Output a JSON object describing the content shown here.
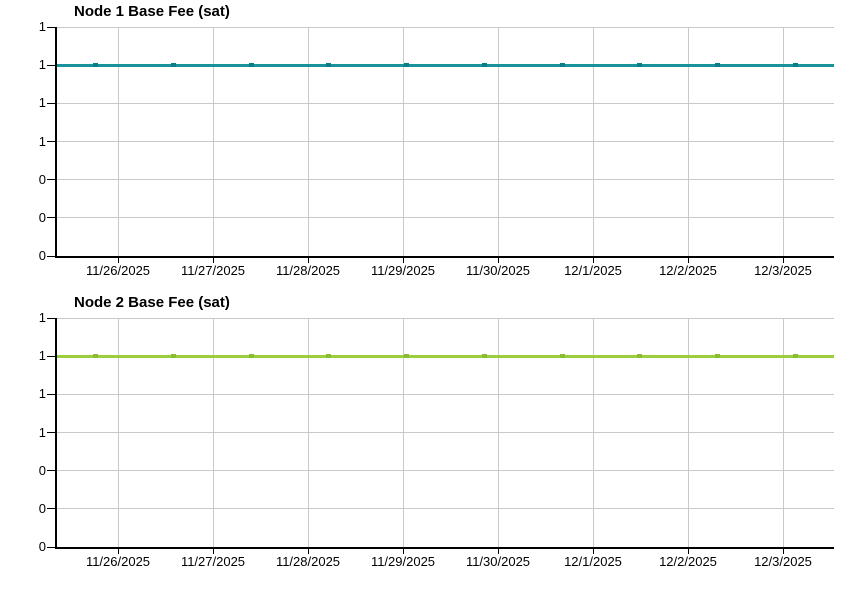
{
  "chart_data": [
    {
      "type": "line",
      "title": "Node 1 Base Fee (sat)",
      "x_tick_labels": [
        "11/26/2025",
        "11/27/2025",
        "11/28/2025",
        "11/29/2025",
        "11/30/2025",
        "12/1/2025",
        "12/2/2025",
        "12/3/2025"
      ],
      "y_ticks": [
        1.2,
        1.0,
        0.8,
        0.6,
        0.4,
        0.2,
        0.0
      ],
      "y_tick_labels": [
        "1",
        "1",
        "1",
        "1",
        "0",
        "0",
        "0"
      ],
      "ylim": [
        0,
        1.2
      ],
      "xlabel": "",
      "ylabel": "",
      "grid": true,
      "legend": "none",
      "line_color": "#18929b",
      "marker_color": "#0d7d85",
      "grid_color": "#c9c9c9",
      "axis_color": "#000000",
      "series": [
        {
          "name": "Node 1 Base Fee (sat)",
          "values": [
            1,
            1,
            1,
            1,
            1,
            1,
            1,
            1,
            1,
            1
          ]
        }
      ]
    },
    {
      "type": "line",
      "title": "Node 2 Base Fee (sat)",
      "x_tick_labels": [
        "11/26/2025",
        "11/27/2025",
        "11/28/2025",
        "11/29/2025",
        "11/30/2025",
        "12/1/2025",
        "12/2/2025",
        "12/3/2025"
      ],
      "y_ticks": [
        1.2,
        1.0,
        0.8,
        0.6,
        0.4,
        0.2,
        0.0
      ],
      "y_tick_labels": [
        "1",
        "1",
        "1",
        "1",
        "0",
        "0",
        "0"
      ],
      "ylim": [
        0,
        1.2
      ],
      "xlabel": "",
      "ylabel": "",
      "grid": true,
      "legend": "none",
      "line_color": "#9ccd3d",
      "marker_color": "#8abc32",
      "grid_color": "#c9c9c9",
      "axis_color": "#000000",
      "series": [
        {
          "name": "Node 2 Base Fee (sat)",
          "values": [
            1,
            1,
            1,
            1,
            1,
            1,
            1,
            1,
            1,
            1
          ]
        }
      ]
    }
  ]
}
